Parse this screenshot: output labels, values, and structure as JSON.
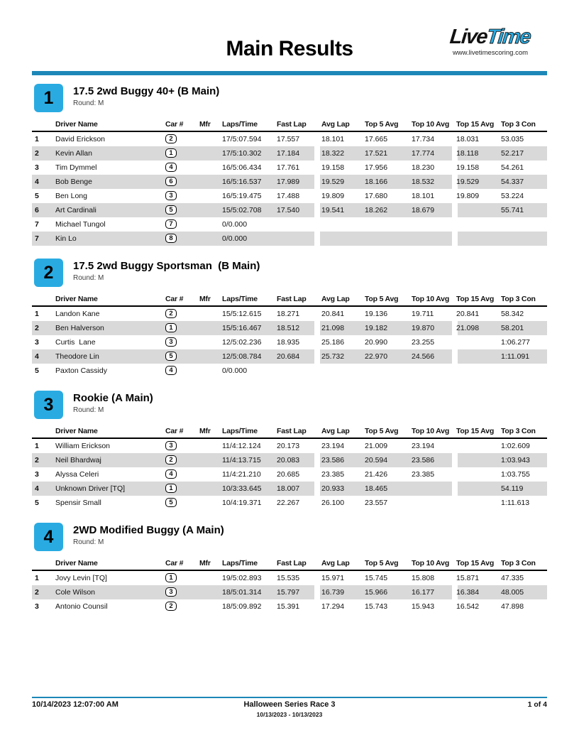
{
  "header": {
    "title": "Main Results",
    "logo_live": "Live",
    "logo_time": "Time",
    "logo_url": "www.livetimescoring.com"
  },
  "colors": {
    "accent_blue": "#29ABE2",
    "rule_blue": "#1D87B8",
    "row_stripe_gray": "#D9D9D9"
  },
  "table_columns": [
    "",
    "Driver Name",
    "Car #",
    "Mfr",
    "Laps/Time",
    "Fast Lap",
    "Avg Lap",
    "Top 5 Avg",
    "Top 10 Avg",
    "Top 15 Avg",
    "Top 3 Con"
  ],
  "sections": [
    {
      "number": "1",
      "title": "17.5 2wd Buggy 40+ (B Main)",
      "round": "Round: M",
      "rows": [
        {
          "pos": "1",
          "driver": "David Erickson",
          "car": "2",
          "mfr": "",
          "laps_time": "17/5:07.594",
          "fast_lap": "17.557",
          "avg_lap": "18.101",
          "top5": "17.665",
          "top10": "17.734",
          "top15": "18.031",
          "top3con": "53.035"
        },
        {
          "pos": "2",
          "driver": "Kevin Allan",
          "car": "1",
          "mfr": "",
          "laps_time": "17/5:10.302",
          "fast_lap": "17.184",
          "avg_lap": "18.322",
          "top5": "17.521",
          "top10": "17.774",
          "top15": "18.118",
          "top3con": "52.217"
        },
        {
          "pos": "3",
          "driver": "Tim Dymmel",
          "car": "4",
          "mfr": "",
          "laps_time": "16/5:06.434",
          "fast_lap": "17.761",
          "avg_lap": "19.158",
          "top5": "17.956",
          "top10": "18.230",
          "top15": "19.158",
          "top3con": "54.261"
        },
        {
          "pos": "4",
          "driver": "Bob Benge",
          "car": "6",
          "mfr": "",
          "laps_time": "16/5:16.537",
          "fast_lap": "17.989",
          "avg_lap": "19.529",
          "top5": "18.166",
          "top10": "18.532",
          "top15": "19.529",
          "top3con": "54.337"
        },
        {
          "pos": "5",
          "driver": "Ben Long",
          "car": "3",
          "mfr": "",
          "laps_time": "16/5:19.475",
          "fast_lap": "17.488",
          "avg_lap": "19.809",
          "top5": "17.680",
          "top10": "18.101",
          "top15": "19.809",
          "top3con": "53.224"
        },
        {
          "pos": "6",
          "driver": "Art Cardinali",
          "car": "5",
          "mfr": "",
          "laps_time": "15/5:02.708",
          "fast_lap": "17.540",
          "avg_lap": "19.541",
          "top5": "18.262",
          "top10": "18.679",
          "top15": "",
          "top3con": "55.741"
        },
        {
          "pos": "7",
          "driver": "Michael Tungol",
          "car": "7",
          "mfr": "",
          "laps_time": "0/0.000",
          "fast_lap": "",
          "avg_lap": "",
          "top5": "",
          "top10": "",
          "top15": "",
          "top3con": ""
        },
        {
          "pos": "7",
          "driver": "Kin Lo",
          "car": "8",
          "mfr": "",
          "laps_time": "0/0.000",
          "fast_lap": "",
          "avg_lap": "",
          "top5": "",
          "top10": "",
          "top15": "",
          "top3con": ""
        }
      ]
    },
    {
      "number": "2",
      "title": "17.5 2wd Buggy Sportsman  (B Main)",
      "round": "Round: M",
      "rows": [
        {
          "pos": "1",
          "driver": "Landon Kane",
          "car": "2",
          "mfr": "",
          "laps_time": "15/5:12.615",
          "fast_lap": "18.271",
          "avg_lap": "20.841",
          "top5": "19.136",
          "top10": "19.711",
          "top15": "20.841",
          "top3con": "58.342"
        },
        {
          "pos": "2",
          "driver": "Ben Halverson",
          "car": "1",
          "mfr": "",
          "laps_time": "15/5:16.467",
          "fast_lap": "18.512",
          "avg_lap": "21.098",
          "top5": "19.182",
          "top10": "19.870",
          "top15": "21.098",
          "top3con": "58.201"
        },
        {
          "pos": "3",
          "driver": "Curtis  Lane",
          "car": "3",
          "mfr": "",
          "laps_time": "12/5:02.236",
          "fast_lap": "18.935",
          "avg_lap": "25.186",
          "top5": "20.990",
          "top10": "23.255",
          "top15": "",
          "top3con": "1:06.277"
        },
        {
          "pos": "4",
          "driver": "Theodore Lin",
          "car": "5",
          "mfr": "",
          "laps_time": "12/5:08.784",
          "fast_lap": "20.684",
          "avg_lap": "25.732",
          "top5": "22.970",
          "top10": "24.566",
          "top15": "",
          "top3con": "1:11.091"
        },
        {
          "pos": "5",
          "driver": "Paxton Cassidy",
          "car": "4",
          "mfr": "",
          "laps_time": "0/0.000",
          "fast_lap": "",
          "avg_lap": "",
          "top5": "",
          "top10": "",
          "top15": "",
          "top3con": ""
        }
      ]
    },
    {
      "number": "3",
      "title": "Rookie (A Main)",
      "round": "Round: M",
      "rows": [
        {
          "pos": "1",
          "driver": "William Erickson",
          "car": "3",
          "mfr": "",
          "laps_time": "11/4:12.124",
          "fast_lap": "20.173",
          "avg_lap": "23.194",
          "top5": "21.009",
          "top10": "23.194",
          "top15": "",
          "top3con": "1:02.609"
        },
        {
          "pos": "2",
          "driver": "Neil Bhardwaj",
          "car": "2",
          "mfr": "",
          "laps_time": "11/4:13.715",
          "fast_lap": "20.083",
          "avg_lap": "23.586",
          "top5": "20.594",
          "top10": "23.586",
          "top15": "",
          "top3con": "1:03.943"
        },
        {
          "pos": "3",
          "driver": "Alyssa Celeri",
          "car": "4",
          "mfr": "",
          "laps_time": "11/4:21.210",
          "fast_lap": "20.685",
          "avg_lap": "23.385",
          "top5": "21.426",
          "top10": "23.385",
          "top15": "",
          "top3con": "1:03.755"
        },
        {
          "pos": "4",
          "driver": "Unknown Driver [TQ]",
          "car": "1",
          "mfr": "",
          "laps_time": "10/3:33.645",
          "fast_lap": "18.007",
          "avg_lap": "20.933",
          "top5": "18.465",
          "top10": "",
          "top15": "",
          "top3con": "54.119"
        },
        {
          "pos": "5",
          "driver": "Spensir Small",
          "car": "5",
          "mfr": "",
          "laps_time": "10/4:19.371",
          "fast_lap": "22.267",
          "avg_lap": "26.100",
          "top5": "23.557",
          "top10": "",
          "top15": "",
          "top3con": "1:11.613"
        }
      ]
    },
    {
      "number": "4",
      "title": "2WD Modified Buggy (A Main)",
      "round": "Round: M",
      "rows": [
        {
          "pos": "1",
          "driver": "Jovy Levin [TQ]",
          "car": "1",
          "mfr": "",
          "laps_time": "19/5:02.893",
          "fast_lap": "15.535",
          "avg_lap": "15.971",
          "top5": "15.745",
          "top10": "15.808",
          "top15": "15.871",
          "top3con": "47.335"
        },
        {
          "pos": "2",
          "driver": "Cole Wilson",
          "car": "3",
          "mfr": "",
          "laps_time": "18/5:01.314",
          "fast_lap": "15.797",
          "avg_lap": "16.739",
          "top5": "15.966",
          "top10": "16.177",
          "top15": "16.384",
          "top3con": "48.005"
        },
        {
          "pos": "3",
          "driver": "Antonio Counsil",
          "car": "2",
          "mfr": "",
          "laps_time": "18/5:09.892",
          "fast_lap": "15.391",
          "avg_lap": "17.294",
          "top5": "15.743",
          "top10": "15.943",
          "top15": "16.542",
          "top3con": "47.898"
        }
      ]
    }
  ],
  "footer": {
    "generated_at": "10/14/2023 12:07:00 AM",
    "event": "Halloween Series Race 3",
    "date_range": "10/13/2023 - 10/13/2023",
    "page_number": "1 of 4"
  }
}
